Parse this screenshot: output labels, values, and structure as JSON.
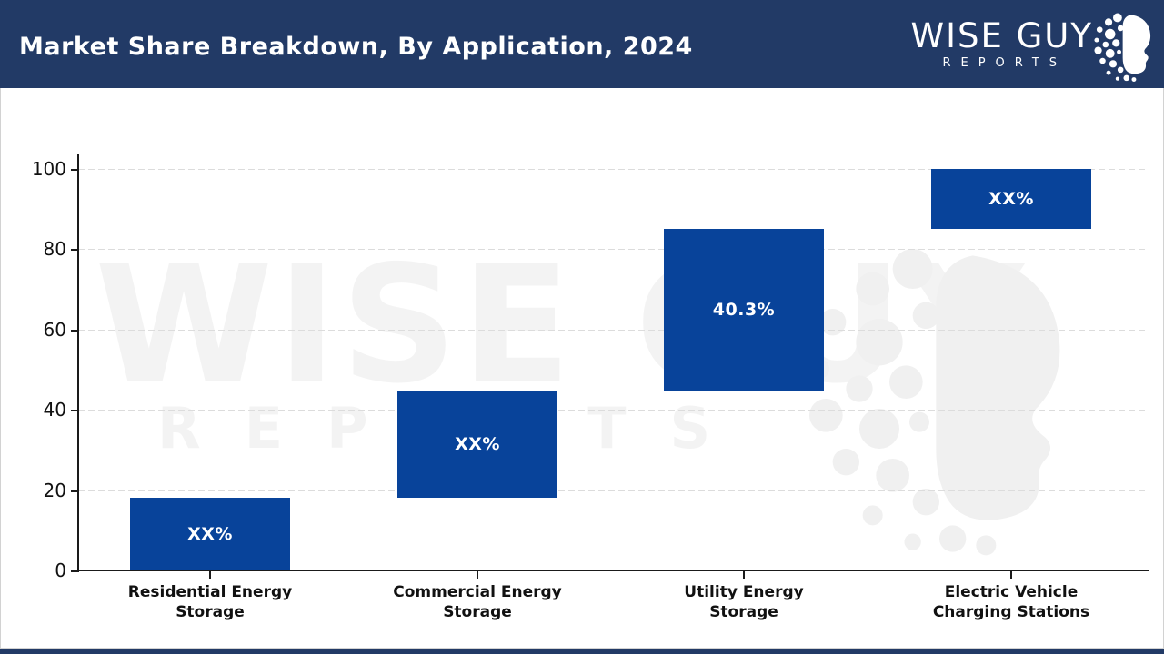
{
  "header": {
    "title": "Market Share Breakdown, By Application, 2024",
    "logo": {
      "name": "WISE GUY",
      "subtitle": "REPORTS"
    }
  },
  "watermark": {
    "line1": "WISE GUY",
    "line2": "REPORTS"
  },
  "chart_data": {
    "type": "bar",
    "variant": "floating-segment-breakdown",
    "title": "Market Share Breakdown, By Application, 2024",
    "categories": [
      "Residential Energy\nStorage",
      "Commercial Energy\nStorage",
      "Utility Energy\nStorage",
      "Electric Vehicle\nCharging Stations"
    ],
    "segments": [
      {
        "label": "XX%",
        "start": 0,
        "end": 18
      },
      {
        "label": "XX%",
        "start": 18,
        "end": 44.7
      },
      {
        "label": "40.3%",
        "start": 44.7,
        "end": 85
      },
      {
        "label": "XX%",
        "start": 85,
        "end": 100
      }
    ],
    "yticks": [
      0,
      20,
      40,
      60,
      80,
      100
    ],
    "ylim": [
      0,
      105
    ],
    "xlabel": "",
    "ylabel": "",
    "grid": "horizontal-dashed",
    "legend": "none",
    "bar_color": "#08439A"
  },
  "colors": {
    "header_bg": "#223A66",
    "bar": "#08439A",
    "grid": "#dcdcdc",
    "watermark": "#f3f3f3",
    "text": "#111111"
  }
}
